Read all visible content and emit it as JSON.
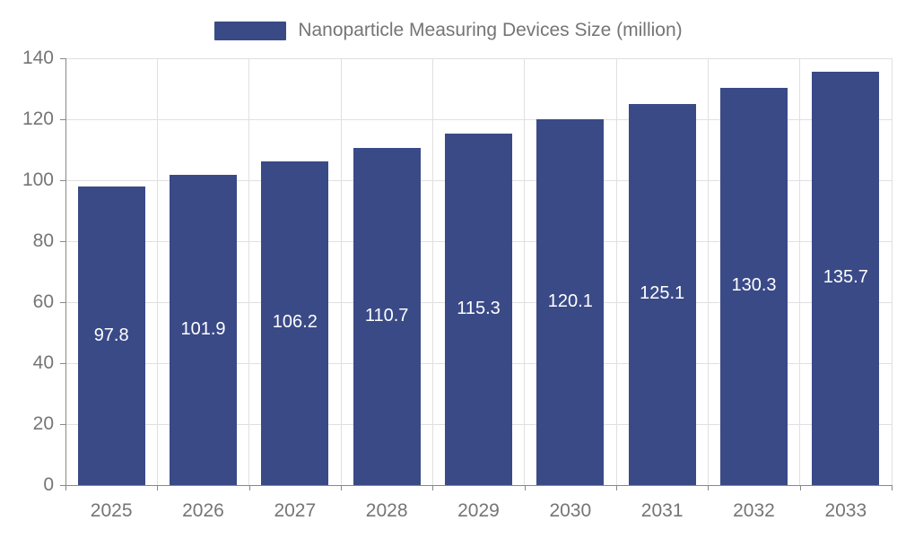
{
  "chart_data": {
    "type": "bar",
    "title": "",
    "xlabel": "",
    "ylabel": "",
    "categories": [
      "2025",
      "2026",
      "2027",
      "2028",
      "2029",
      "2030",
      "2031",
      "2032",
      "2033"
    ],
    "series": [
      {
        "name": "Nanoparticle Measuring Devices Size (million)",
        "values": [
          97.8,
          101.9,
          106.2,
          110.7,
          115.3,
          120.1,
          125.1,
          130.3,
          135.7
        ]
      }
    ],
    "value_labels": [
      "97.8",
      "101.9",
      "106.2",
      "110.7",
      "115.3",
      "120.1",
      "125.1",
      "130.3",
      "135.7"
    ],
    "ylim": [
      0,
      140
    ],
    "yticks": [
      0,
      20,
      40,
      60,
      80,
      100,
      120,
      140
    ],
    "grid": true,
    "legend_position": "top",
    "colors": {
      "bar": "#3a4a87",
      "bar_value_text": "#ffffff",
      "axis": "#888888",
      "grid": "#e0e0e0",
      "tick_label": "#757575",
      "legend_text": "#757575",
      "background": "#ffffff"
    }
  },
  "legend": {
    "label": "Nanoparticle Measuring Devices Size (million)",
    "swatch_color": "#3a4a87"
  }
}
